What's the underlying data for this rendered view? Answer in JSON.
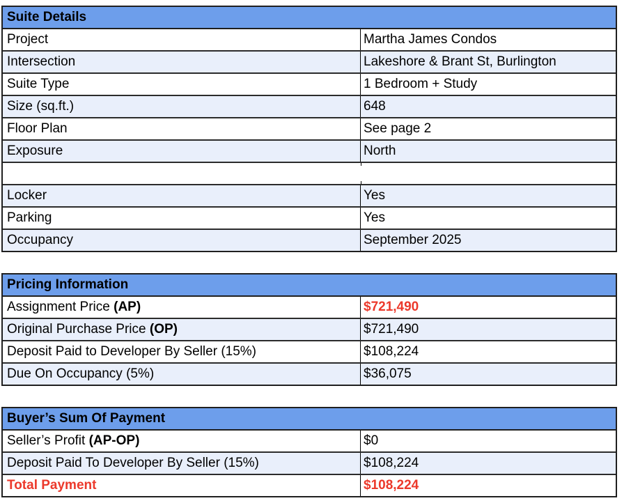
{
  "colors": {
    "header_bg": "#6D9EEB",
    "zebra_bg": "#E9EFFB",
    "accent_red": "#EC392B",
    "border": "#1F1F1F",
    "text": "#000000",
    "page_bg": "#FFFFFF"
  },
  "tables": [
    {
      "title": "Suite Details",
      "rows": [
        {
          "label": "Project",
          "value": "Martha James Condos"
        },
        {
          "label": "Intersection",
          "value": "Lakeshore & Brant St, Burlington"
        },
        {
          "label": "Suite Type",
          "value": "1 Bedroom + Study"
        },
        {
          "label": "Size (sq.ft.)",
          "value": "648"
        },
        {
          "label": "Floor Plan",
          "value": "See page 2"
        },
        {
          "label": "Exposure",
          "value": "North"
        },
        {
          "label": "",
          "value": "",
          "empty": true
        },
        {
          "label": "Locker",
          "value": "Yes"
        },
        {
          "label": "Parking",
          "value": "Yes"
        },
        {
          "label": "Occupancy",
          "value": "September 2025"
        }
      ]
    },
    {
      "title": "Pricing Information",
      "rows": [
        {
          "label": "Assignment Price ",
          "label_bold": "(AP)",
          "value": "$721,490",
          "value_style": "red-bold"
        },
        {
          "label": "Original Purchase Price ",
          "label_bold": "(OP)",
          "value": "$721,490"
        },
        {
          "label": "Deposit Paid to Developer By Seller (15%)",
          "value": "$108,224"
        },
        {
          "label": "Due On Occupancy (5%)",
          "value": "$36,075"
        }
      ]
    },
    {
      "title": "Buyer’s Sum Of Payment",
      "rows": [
        {
          "label": "Seller’s Profit ",
          "label_bold": "(AP-OP)",
          "value": "$0"
        },
        {
          "label": "Deposit Paid To Developer By Seller (15%)",
          "value": "$108,224"
        },
        {
          "label": "Total Payment",
          "value": "$108,224",
          "label_style": "red-bold",
          "value_style": "red-bold"
        }
      ]
    }
  ]
}
